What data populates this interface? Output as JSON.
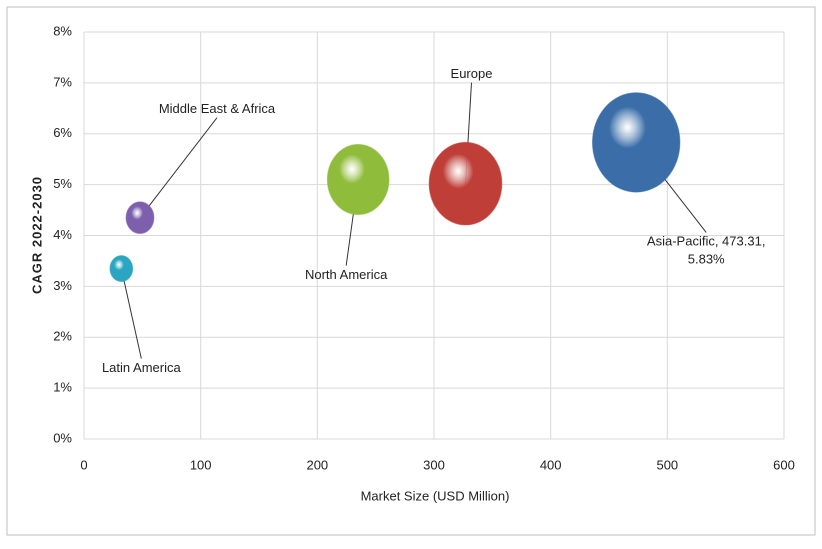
{
  "chart_data": {
    "type": "bubble",
    "xlabel": "Market Size (USD Million)",
    "ylabel": "CAGR 2022-2030",
    "labels": [
      "Latin America",
      "Middle East & Africa",
      "North America",
      "Europe",
      "Asia-Pacific, 473.31, 5.83%"
    ],
    "x": [
      32,
      48,
      235,
      327,
      473.31
    ],
    "y": [
      3.35,
      4.35,
      5.1,
      5.02,
      5.83
    ],
    "sizes": [
      32,
      48,
      235,
      327,
      473.31
    ],
    "colors": [
      "#2aa6c2",
      "#7d5fae",
      "#8fbc3a",
      "#bf3f38",
      "#3b6ea9"
    ],
    "xlim": [
      0,
      600
    ],
    "xticks": [
      0,
      100,
      200,
      300,
      400,
      500,
      600
    ],
    "ylim": [
      0,
      8
    ],
    "yticks": [
      {
        "value": 0,
        "label": "0%"
      },
      {
        "value": 1,
        "label": "1%"
      },
      {
        "value": 2,
        "label": "2%"
      },
      {
        "value": 3,
        "label": "3%"
      },
      {
        "value": 4,
        "label": "4%"
      },
      {
        "value": 5,
        "label": "5%"
      },
      {
        "value": 6,
        "label": "6%"
      },
      {
        "value": 7,
        "label": "7%"
      },
      {
        "value": 8,
        "label": "8%"
      }
    ],
    "grid": true
  }
}
